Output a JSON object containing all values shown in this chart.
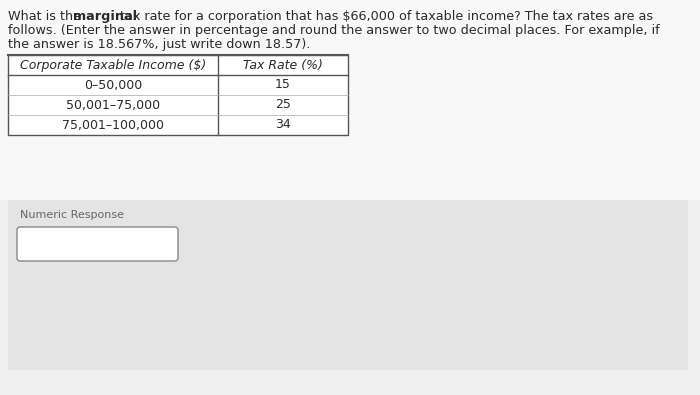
{
  "q_part1": "What is the ",
  "q_bold": "marginal",
  "q_part2": " tax rate for a corporation that has $66,000 of taxable income? The tax rates are as",
  "q_line2": "follows. (Enter the answer in percentage and round the answer to two decimal places. For example, if",
  "q_line3": "the answer is 18.567%, just write down 18.57).",
  "col1_header": "Corporate Taxable Income ($)",
  "col2_header": "Tax Rate (%)",
  "rows": [
    [
      "0–50,000",
      "15"
    ],
    [
      "50,001–75,000",
      "25"
    ],
    [
      "75,001–100,000",
      "34"
    ]
  ],
  "numeric_response_label": "Numeric Response",
  "bg_color": "#f0f0f0",
  "page_bg": "#f5f5f5",
  "response_area_bg": "#e4e4e4",
  "table_bg": "#ffffff",
  "answer_box_bg": "#ffffff",
  "text_color": "#2a2a2a",
  "label_color": "#666666",
  "border_color": "#888888",
  "font_size_question": 9.2,
  "font_size_table": 9.0,
  "font_size_label": 8.0
}
